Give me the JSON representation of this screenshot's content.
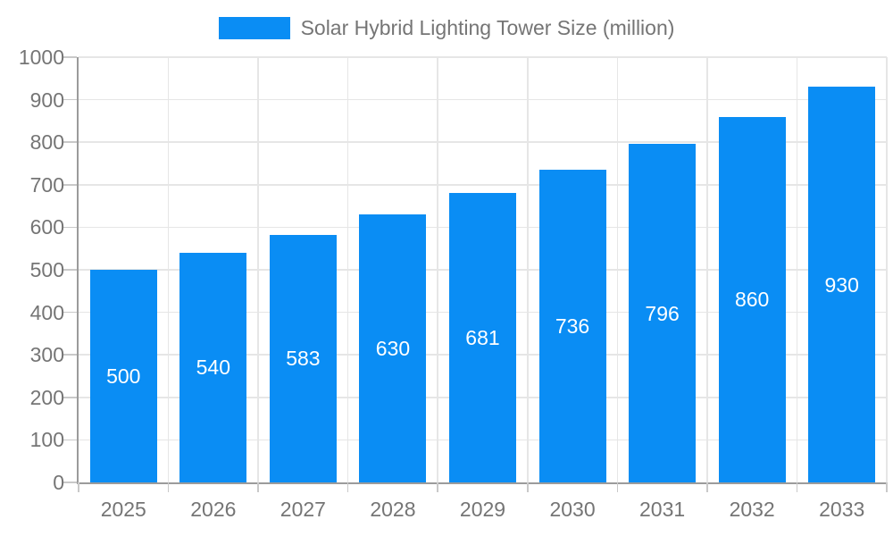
{
  "chart_data": {
    "type": "bar",
    "title": "Solar Hybrid Lighting Tower Size (million)",
    "legend": {
      "label": "Solar Hybrid Lighting Tower Size (million)",
      "position": "top"
    },
    "categories": [
      "2025",
      "2026",
      "2027",
      "2028",
      "2029",
      "2030",
      "2031",
      "2032",
      "2033"
    ],
    "values": [
      500,
      540,
      583,
      630,
      681,
      736,
      796,
      860,
      930
    ],
    "xlabel": "",
    "ylabel": "",
    "ylim": [
      0,
      1000
    ],
    "ytick_step": 100,
    "yticks": [
      0,
      100,
      200,
      300,
      400,
      500,
      600,
      700,
      800,
      900,
      1000
    ],
    "grid": true,
    "value_labels": "inside-center",
    "colors": {
      "bar": "#0a8df4",
      "bar_value_label": "#ffffff",
      "text": "#757575",
      "axis": "#9b9b9b",
      "gridline": "#e6e6e6",
      "tick": "#c9c9c9",
      "background": "#ffffff"
    }
  }
}
